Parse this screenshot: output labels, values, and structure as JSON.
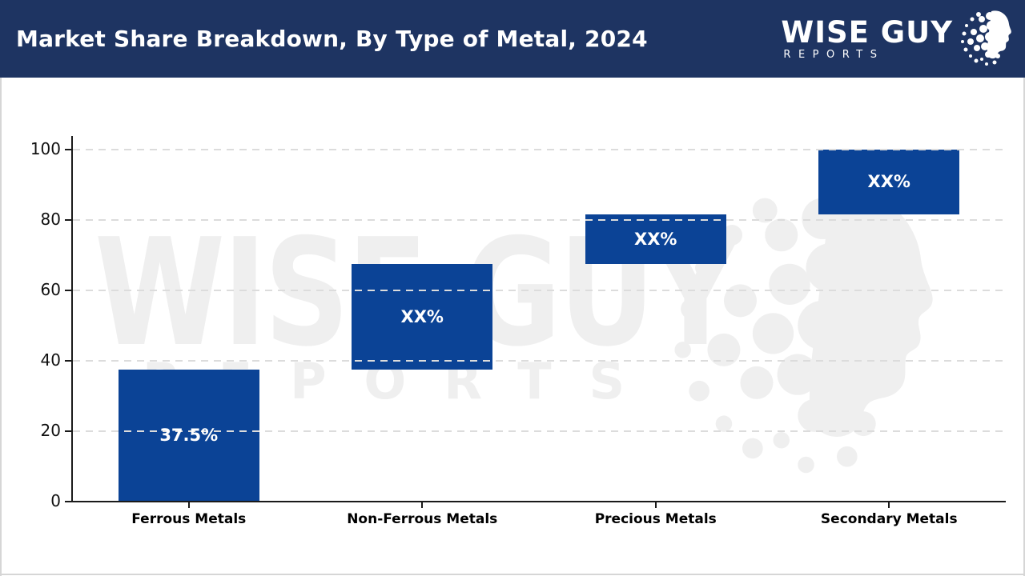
{
  "header": {
    "title": "Market Share Breakdown, By Type of Metal, 2024",
    "bg_color": "#1e3462",
    "logo": {
      "line1": "WISE GUY",
      "line2": "REPORTS",
      "face_icon": "dotted-head-profile"
    }
  },
  "watermark": {
    "line1": "WISE GUY",
    "line2": "REPORTS",
    "color": "#efefef"
  },
  "chart_data": {
    "type": "bar",
    "subtype": "waterfall",
    "title": "Market Share Breakdown, By Type of Metal, 2024",
    "categories": [
      "Ferrous Metals",
      "Non-Ferrous Metals",
      "Precious Metals",
      "Secondary Metals"
    ],
    "segments": [
      {
        "category": "Ferrous Metals",
        "start": 0,
        "end": 37.5,
        "label": "37.5%"
      },
      {
        "category": "Non-Ferrous Metals",
        "start": 37.5,
        "end": 67.5,
        "label": "XX%"
      },
      {
        "category": "Precious Metals",
        "start": 67.5,
        "end": 81.5,
        "label": "XX%"
      },
      {
        "category": "Secondary Metals",
        "start": 81.5,
        "end": 100,
        "label": "XX%"
      }
    ],
    "bar_color": "#0b4396",
    "bar_label_color": "#ffffff",
    "xlabel": "",
    "ylabel": "",
    "ylim": [
      0,
      100
    ],
    "yticks": [
      0,
      20,
      40,
      60,
      80,
      100
    ],
    "grid": "horizontal dashed, drawn over bars",
    "legend": "none",
    "grid_color": "#dcdcdc"
  }
}
